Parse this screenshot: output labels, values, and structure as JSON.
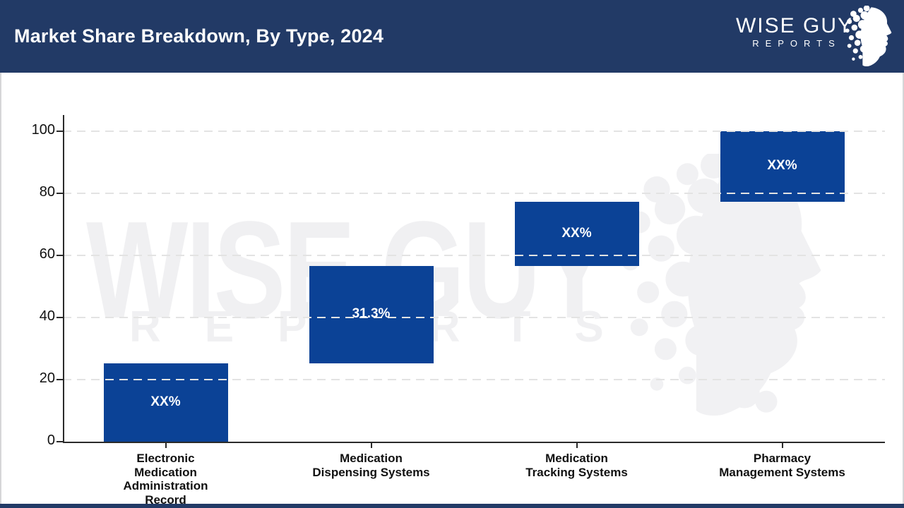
{
  "header": {
    "title": "Market Share Breakdown, By Type, 2024",
    "logo": {
      "line1": "WISE GUY",
      "line2": "REPORTS"
    }
  },
  "watermark": {
    "line1": "WISE GUY",
    "line2": "REPORTS"
  },
  "colors": {
    "header_bg": "#223a66",
    "bar": "#0b4296",
    "grid": "#e3e3e3",
    "axis": "#2a2a2a",
    "watermark": "#f0f0f2",
    "bar_label": "#ffffff"
  },
  "chart_data": {
    "type": "bar",
    "subtype": "waterfall",
    "title": "Market Share Breakdown, By Type, 2024",
    "xlabel": "",
    "ylabel": "",
    "ylim": [
      0,
      100
    ],
    "yticks": [
      0,
      20,
      40,
      60,
      80,
      100
    ],
    "grid": "horizontal-dashed",
    "legend": "none",
    "bar_color": "#0b4296",
    "categories": [
      "Electronic Medication Administration Record",
      "Medication Dispensing Systems",
      "Medication Tracking Systems",
      "Pharmacy Management Systems"
    ],
    "category_lines": [
      [
        "Electronic",
        "Medication",
        "Administration",
        "Record"
      ],
      [
        "Medication",
        "Dispensing Systems"
      ],
      [
        "Medication",
        "Tracking Systems"
      ],
      [
        "Pharmacy",
        "Management Systems"
      ]
    ],
    "segments": [
      {
        "start": 0,
        "end": 25.2,
        "value_label": "XX%"
      },
      {
        "start": 25.2,
        "end": 56.5,
        "value_label": "31.3%"
      },
      {
        "start": 56.5,
        "end": 77.3,
        "value_label": "XX%"
      },
      {
        "start": 77.3,
        "end": 100,
        "value_label": "XX%"
      }
    ]
  }
}
